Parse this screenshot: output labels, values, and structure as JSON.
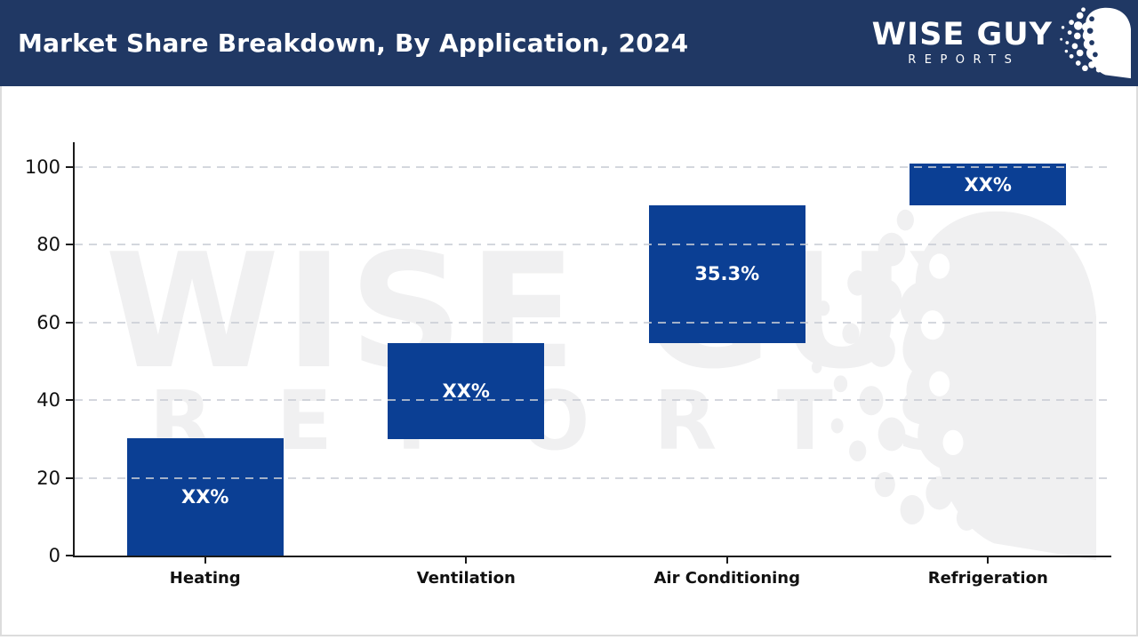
{
  "header": {
    "title": "Market Share Breakdown, By Application, 2024",
    "bg_color": "#203864",
    "logo": {
      "line1": "WISE GUY",
      "line2": "REPORTS"
    }
  },
  "watermark": {
    "line1": "WISE GUY",
    "line2": "REPORTS"
  },
  "chart_data": {
    "type": "bar",
    "subtype": "waterfall",
    "title": "Market Share Breakdown, By Application, 2024",
    "categories": [
      "Heating",
      "Ventilation",
      "Air Conditioning",
      "Refrigeration"
    ],
    "segments": [
      {
        "category": "Heating",
        "start": 0,
        "end": 30.2,
        "label": "XX%"
      },
      {
        "category": "Ventilation",
        "start": 30.0,
        "end": 54.6,
        "label": "XX%"
      },
      {
        "category": "Air Conditioning",
        "start": 54.7,
        "end": 90.0,
        "label": "35.3%"
      },
      {
        "category": "Refrigeration",
        "start": 90.0,
        "end": 100.8,
        "label": "XX%"
      }
    ],
    "xlabel": "",
    "ylabel": "",
    "ylim": [
      0,
      106
    ],
    "yticks": [
      0,
      20,
      40,
      60,
      80,
      100
    ],
    "grid": "horizontal-dashed",
    "legend": "none",
    "bar_color": "#0b3f94",
    "grid_color": "#d9d9d9",
    "axis_color": "#1a1a1a"
  }
}
